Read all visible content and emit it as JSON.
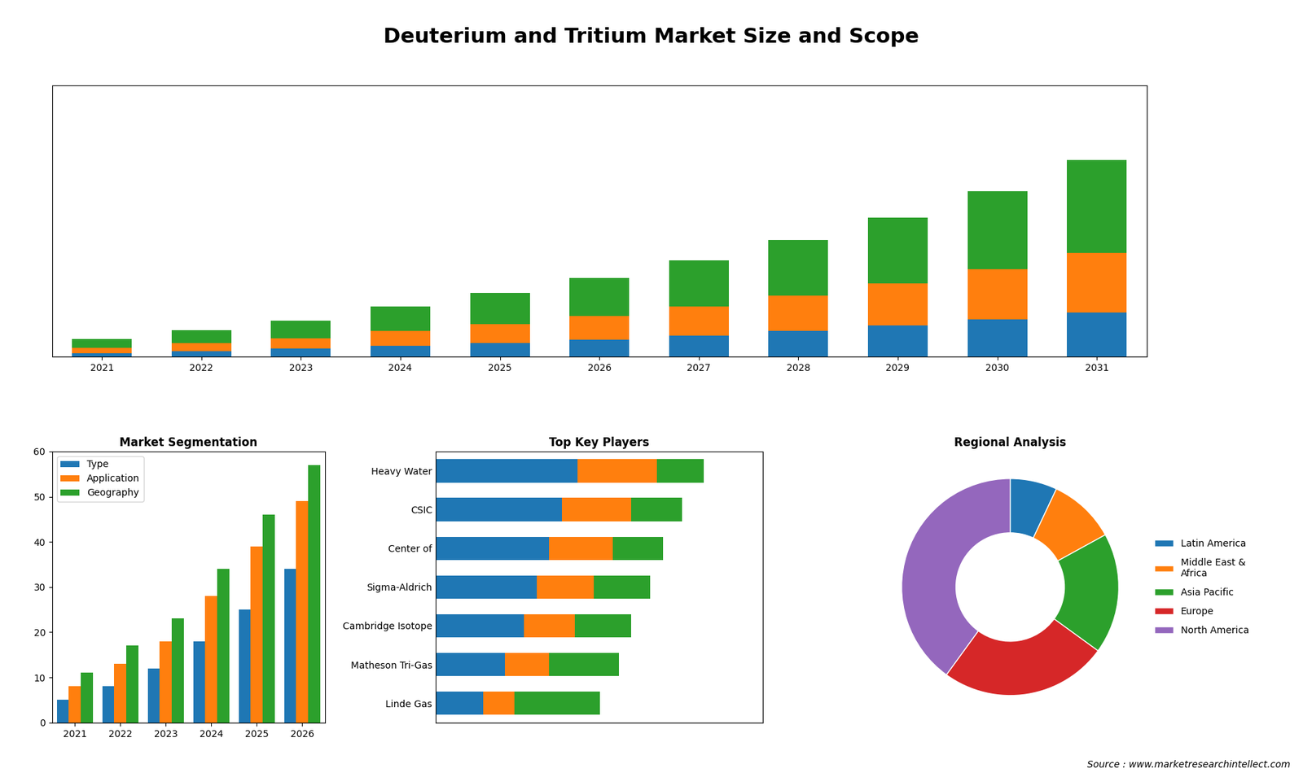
{
  "title": "Deuterium and Tritium Market Size and Scope",
  "annotations": [
    "Source : www.marketresearchintellect.com"
  ],
  "chart_data": [
    {
      "type": "bar",
      "stacked": true,
      "categories": [
        "2021",
        "2022",
        "2023",
        "2024",
        "2025",
        "2026",
        "2027",
        "2028",
        "2029",
        "2030",
        "2031"
      ],
      "series": [
        {
          "values": [
            0.4,
            0.6,
            0.9,
            1.2,
            1.5,
            1.9,
            2.4,
            2.9,
            3.5,
            4.2,
            5.0
          ]
        },
        {
          "values": [
            0.6,
            0.9,
            1.2,
            1.7,
            2.2,
            2.7,
            3.3,
            4.0,
            4.8,
            5.7,
            6.8
          ]
        },
        {
          "values": [
            1.0,
            1.5,
            2.0,
            2.8,
            3.5,
            4.3,
            5.2,
            6.3,
            7.5,
            8.9,
            10.5
          ]
        }
      ],
      "ylim": [
        0,
        30.774
      ],
      "tick_labels": "x"
    },
    {
      "type": "bar",
      "title": "Market Segmentation",
      "categories": [
        "2021",
        "2022",
        "2023",
        "2024",
        "2025",
        "2026"
      ],
      "series": [
        {
          "name": "Type",
          "values": [
            5,
            8,
            12,
            18,
            25,
            34
          ]
        },
        {
          "name": "Application",
          "values": [
            8,
            13,
            18,
            28,
            39,
            49
          ]
        },
        {
          "name": "Geography",
          "values": [
            11,
            17,
            23,
            34,
            46,
            57
          ]
        }
      ],
      "ylim": [
        0,
        60
      ],
      "yticks": [
        0,
        10,
        20,
        30,
        40,
        50,
        60
      ],
      "legend": "upper left"
    },
    {
      "type": "bar",
      "orientation": "horizontal",
      "stacked": true,
      "title": "Top Key Players",
      "categories": [
        "Heavy Water",
        "CSIC",
        "Center of",
        "Sigma-Aldrich",
        "Cambridge Isotope",
        "Matheson Tri-Gas",
        "Linde Gas"
      ],
      "series": [
        {
          "values": [
            4.5,
            4.0,
            3.6,
            3.2,
            2.8,
            2.2,
            1.5
          ]
        },
        {
          "values": [
            2.5,
            2.2,
            2.0,
            1.8,
            1.6,
            1.4,
            1.0
          ]
        },
        {
          "values": [
            1.5,
            1.6,
            1.6,
            1.8,
            1.8,
            2.2,
            2.7
          ]
        }
      ],
      "xlim": [
        0,
        10.37
      ],
      "tick_labels": "y"
    },
    {
      "type": "pie",
      "title": "Regional Analysis",
      "categories": [
        "Latin America",
        "Middle East &\nAfrica",
        "Asia Pacific",
        "Europe",
        "North America"
      ],
      "values": [
        7,
        10,
        18,
        25,
        40
      ],
      "legend": "center left"
    }
  ]
}
